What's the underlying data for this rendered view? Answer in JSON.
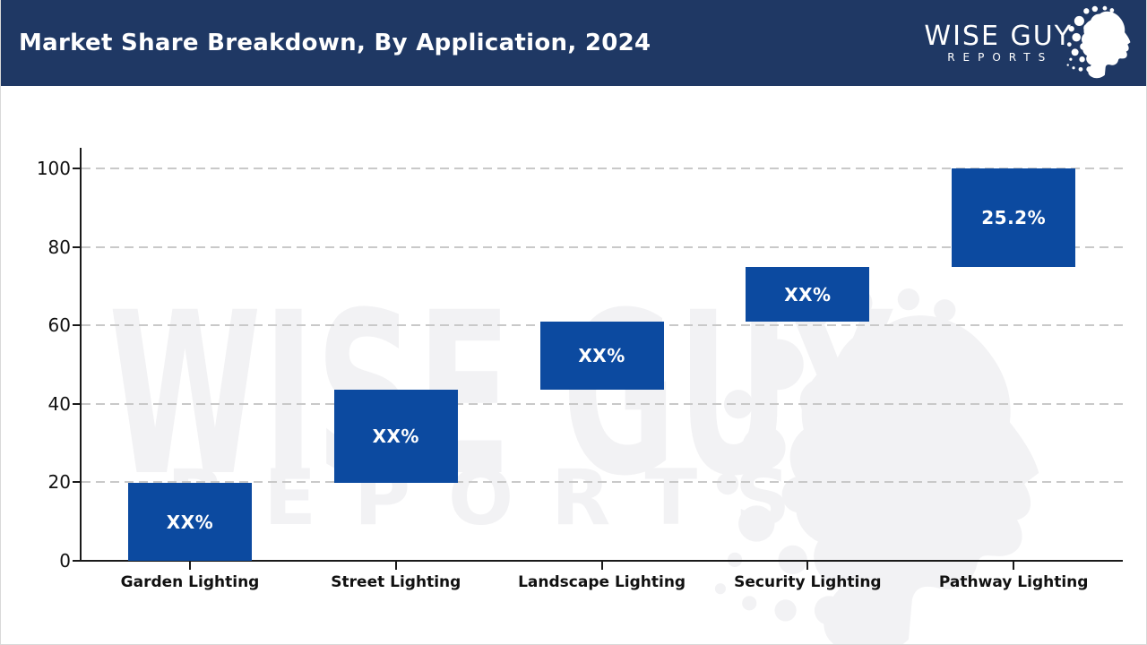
{
  "header": {
    "title": "Market Share Breakdown, By Application, 2024",
    "logo": {
      "brand": "WISE GUY",
      "sub": "REPORTS"
    }
  },
  "watermark": {
    "line1": "WISE GUY",
    "line2": "REPORTS"
  },
  "colors": {
    "header_bg": "#1f3864",
    "bar": "#0c4aa0",
    "grid": "#c9c9c9",
    "axis": "#1a1a1a",
    "watermark": "#f2f2f4",
    "bar_label_text": "#ffffff",
    "tick_text": "#111111"
  },
  "chart_data": {
    "type": "bar",
    "subtype": "floating-waterfall",
    "title": "Market Share Breakdown, By Application, 2024",
    "categories": [
      "Garden Lighting",
      "Street Lighting",
      "Landscape Lighting",
      "Security Lighting",
      "Pathway Lighting"
    ],
    "bars": [
      {
        "category": "Garden Lighting",
        "start": 0,
        "end": 19.8,
        "label": "XX%"
      },
      {
        "category": "Street Lighting",
        "start": 19.8,
        "end": 43.6,
        "label": "XX%"
      },
      {
        "category": "Landscape Lighting",
        "start": 43.6,
        "end": 61.0,
        "label": "XX%"
      },
      {
        "category": "Security Lighting",
        "start": 61.0,
        "end": 74.8,
        "label": "XX%"
      },
      {
        "category": "Pathway Lighting",
        "start": 74.8,
        "end": 100.0,
        "label": "25.2%"
      }
    ],
    "xlabel": "",
    "ylabel": "",
    "ylim": [
      0,
      100
    ],
    "yticks": [
      0,
      20,
      40,
      60,
      80,
      100
    ],
    "grid": "horizontal-dashed",
    "legend": "none"
  }
}
